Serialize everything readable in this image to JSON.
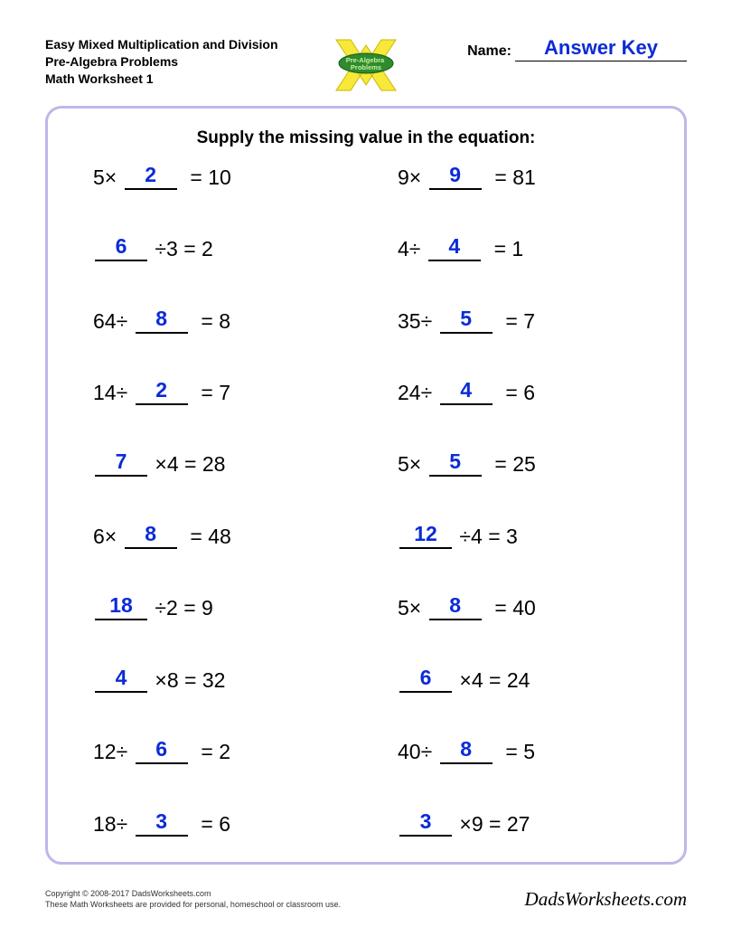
{
  "header": {
    "title_line1": "Easy Mixed Multiplication and Division",
    "title_line2": "Pre-Algebra Problems",
    "title_line3": "Math Worksheet 1",
    "name_label": "Name:",
    "name_value": "Answer Key",
    "badge_text": "Pre-Algebra Problems"
  },
  "colors": {
    "answer": "#0b2bd6",
    "border": "#bcb8e8",
    "badge_x": "#f7e83a",
    "badge_text": "#2e8b2e"
  },
  "instruction": "Supply the missing value in the equation:",
  "problems": [
    {
      "pre": "5× ",
      "ans": "2",
      "post": "  = 10"
    },
    {
      "pre": "9× ",
      "ans": "9",
      "post": "  = 81"
    },
    {
      "pre": "",
      "ans": "6",
      "post": " ÷3 = 2"
    },
    {
      "pre": "4÷ ",
      "ans": "4",
      "post": "  = 1"
    },
    {
      "pre": "64÷ ",
      "ans": "8",
      "post": "  = 8"
    },
    {
      "pre": "35÷ ",
      "ans": "5",
      "post": "  = 7"
    },
    {
      "pre": "14÷ ",
      "ans": "2",
      "post": "  = 7"
    },
    {
      "pre": "24÷ ",
      "ans": "4",
      "post": "  = 6"
    },
    {
      "pre": "",
      "ans": "7",
      "post": " ×4 = 28"
    },
    {
      "pre": "5× ",
      "ans": "5",
      "post": "  = 25"
    },
    {
      "pre": "6× ",
      "ans": "8",
      "post": "  = 48"
    },
    {
      "pre": "",
      "ans": "12",
      "post": " ÷4 = 3"
    },
    {
      "pre": "",
      "ans": "18",
      "post": " ÷2 = 9"
    },
    {
      "pre": "5× ",
      "ans": "8",
      "post": "  = 40"
    },
    {
      "pre": "",
      "ans": "4",
      "post": " ×8 = 32"
    },
    {
      "pre": "",
      "ans": "6",
      "post": " ×4 = 24"
    },
    {
      "pre": "12÷ ",
      "ans": "6",
      "post": "  = 2"
    },
    {
      "pre": "40÷ ",
      "ans": "8",
      "post": "  = 5"
    },
    {
      "pre": "18÷ ",
      "ans": "3",
      "post": "  = 6"
    },
    {
      "pre": "",
      "ans": "3",
      "post": " ×9 = 27"
    }
  ],
  "footer": {
    "copyright": "Copyright © 2008-2017 DadsWorksheets.com",
    "note": "These Math Worksheets are provided for personal, homeschool or classroom use.",
    "brand": "DadsWorksheets.com"
  }
}
